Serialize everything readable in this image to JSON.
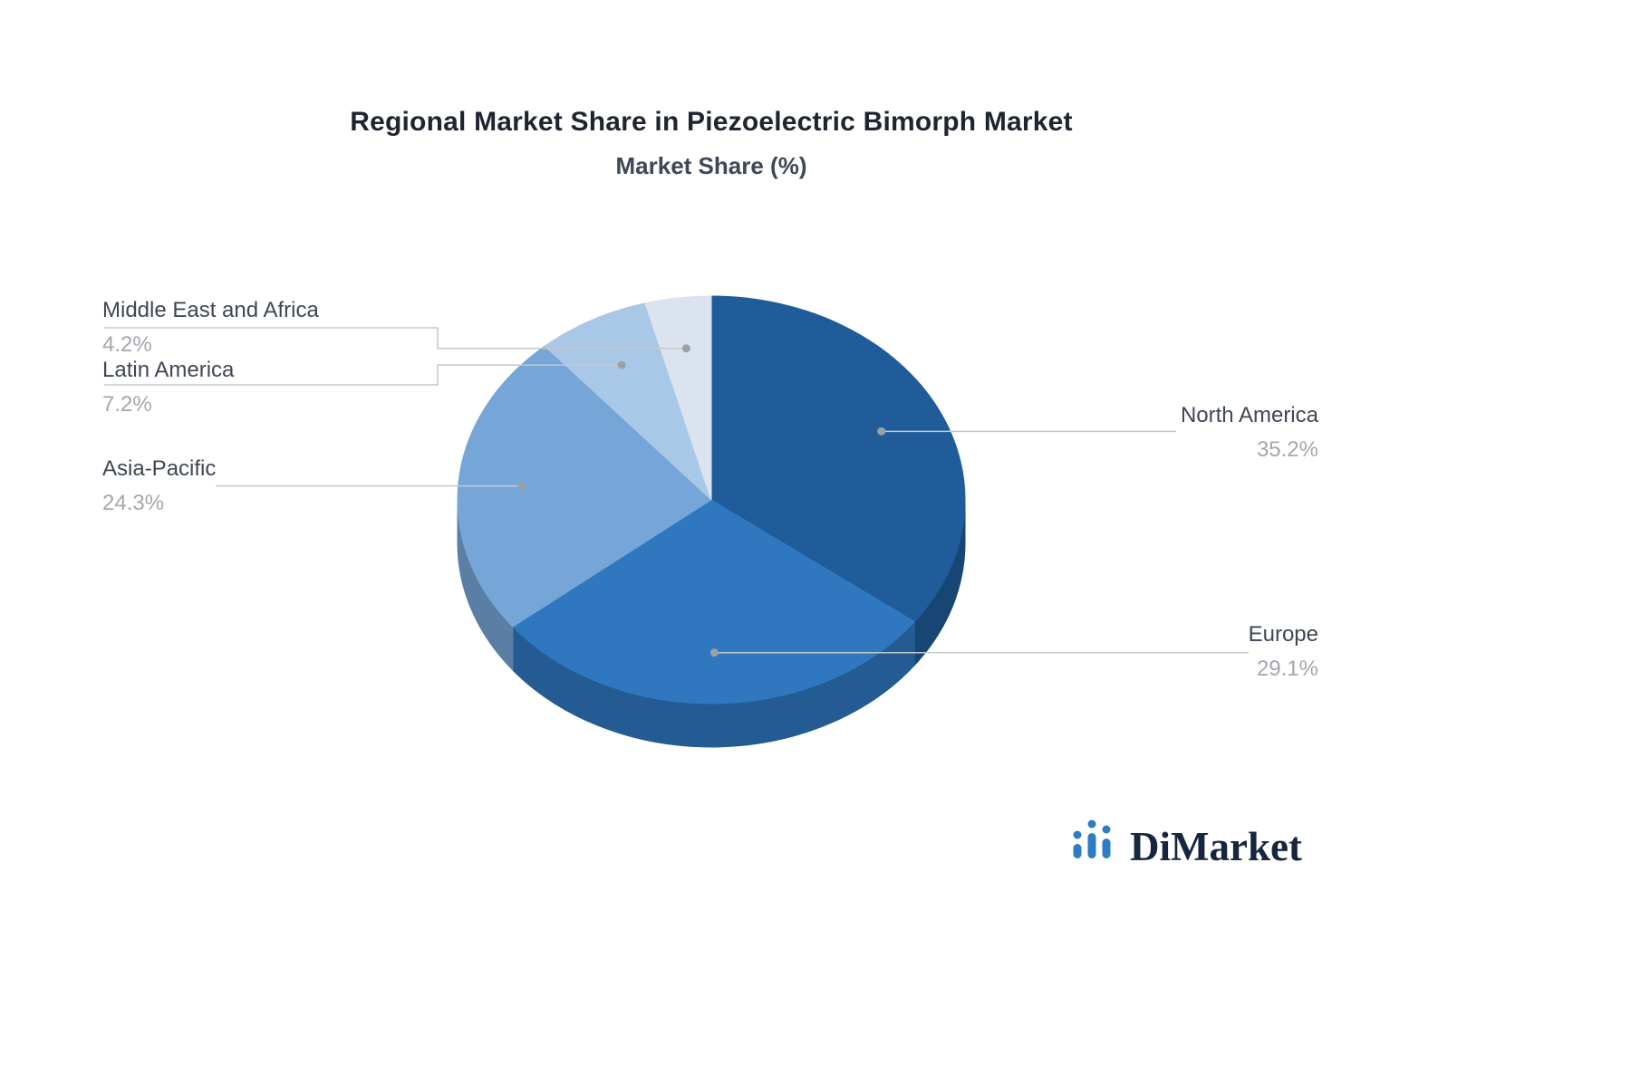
{
  "page": {
    "background": "#ffffff"
  },
  "chart_data": {
    "type": "pie",
    "title": "Regional Market Share in Piezoelectric Bimorph Market",
    "subtitle": "Market Share (%)",
    "style": "3d",
    "direction": "clockwise",
    "start_angle_deg": 0,
    "legend_position": "callout-labels",
    "unit": "%",
    "segments": [
      {
        "label": "North America",
        "value": 35.2,
        "value_text": "35.2%",
        "color": "#1f5c99"
      },
      {
        "label": "Europe",
        "value": 29.1,
        "value_text": "29.1%",
        "color": "#2f78c0"
      },
      {
        "label": "Asia-Pacific",
        "value": 24.3,
        "value_text": "24.3%",
        "color": "#76a6d8"
      },
      {
        "label": "Latin America",
        "value": 7.2,
        "value_text": "7.2%",
        "color": "#a9c7e6"
      },
      {
        "label": "Middle East and Africa",
        "value": 4.2,
        "value_text": "4.2%",
        "color": "#dbe3ee"
      }
    ]
  },
  "branding": {
    "logo_text": "DiMarket",
    "logo_text_color": "#16263f",
    "icon_color": "#2e7cc3"
  },
  "colors": {
    "title": "#1f2430",
    "subtitle": "#3f4754",
    "label_name": "#3f4754",
    "label_value": "#a3a7ad",
    "leader_line": "#c8c8c8",
    "leader_dot": "#9aa0a6"
  }
}
